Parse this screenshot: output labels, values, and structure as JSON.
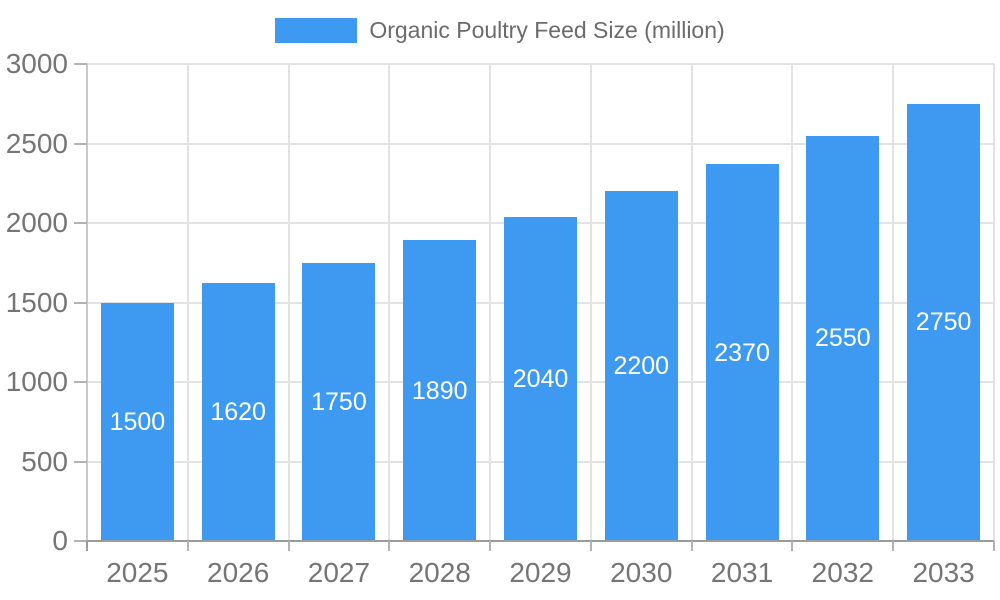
{
  "legend": {
    "items": [
      {
        "label": "Organic Poultry Feed Size (million)",
        "color": "#3d9af0"
      }
    ]
  },
  "chart_data": {
    "type": "bar",
    "title": "Organic Poultry Feed Size (million)",
    "categories": [
      "2025",
      "2026",
      "2027",
      "2028",
      "2029",
      "2030",
      "2031",
      "2032",
      "2033"
    ],
    "values": [
      1500,
      1620,
      1750,
      1890,
      2040,
      2200,
      2370,
      2550,
      2750
    ],
    "series": [
      {
        "name": "Organic Poultry Feed Size (million)",
        "values": [
          1500,
          1620,
          1750,
          1890,
          2040,
          2200,
          2370,
          2550,
          2750
        ]
      }
    ],
    "xlabel": "",
    "ylabel": "",
    "ylim": [
      0,
      3000
    ],
    "yticks": [
      0,
      500,
      1000,
      1500,
      2000,
      2500,
      3000
    ],
    "grid": true,
    "legend_position": "top",
    "colors": {
      "bar": "#3d9af0",
      "value_label": "#ffffff",
      "axis_text": "#757575",
      "legend_text": "#6b6b6b",
      "gridline": "#e3e3e3",
      "axis_line_x": "#9b9b9b",
      "axis_line_y": "#c9c9c9",
      "tick": "#b3b3b3",
      "background": "#ffffff"
    }
  }
}
